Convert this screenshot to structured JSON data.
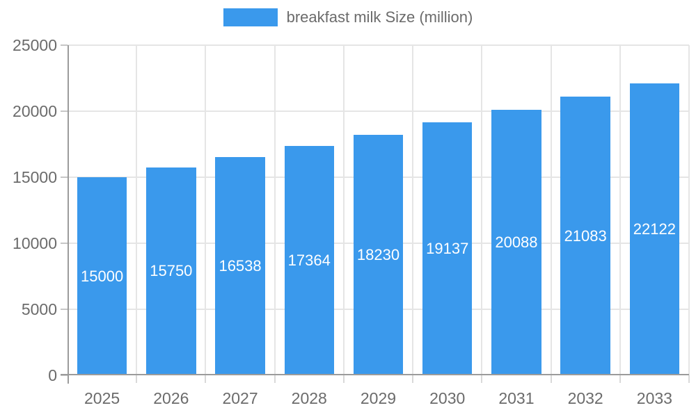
{
  "chart_data": {
    "type": "bar",
    "legend": "breakfast milk Size (million)",
    "legend_position": "top",
    "categories": [
      "2025",
      "2026",
      "2027",
      "2028",
      "2029",
      "2030",
      "2031",
      "2032",
      "2033"
    ],
    "series": [
      {
        "name": "breakfast milk Size (million)",
        "values": [
          15000,
          15750,
          16538,
          17364,
          18230,
          19137,
          20088,
          21083,
          22122
        ]
      }
    ],
    "bar_value_labels_visible": true,
    "ylim": [
      0,
      25000
    ],
    "yticks": [
      0,
      5000,
      10000,
      15000,
      20000,
      25000
    ],
    "ytick_labels": [
      "0",
      "5000",
      "10000",
      "15000",
      "20000",
      "25000"
    ],
    "xlabel": "",
    "ylabel": "",
    "grid": true,
    "colors": {
      "bar": "#3a99ec",
      "grid": "#e5e5e5",
      "axis": "#9b9b9b",
      "text": "#6b6b6b",
      "bar_label": "#ffffff"
    }
  }
}
